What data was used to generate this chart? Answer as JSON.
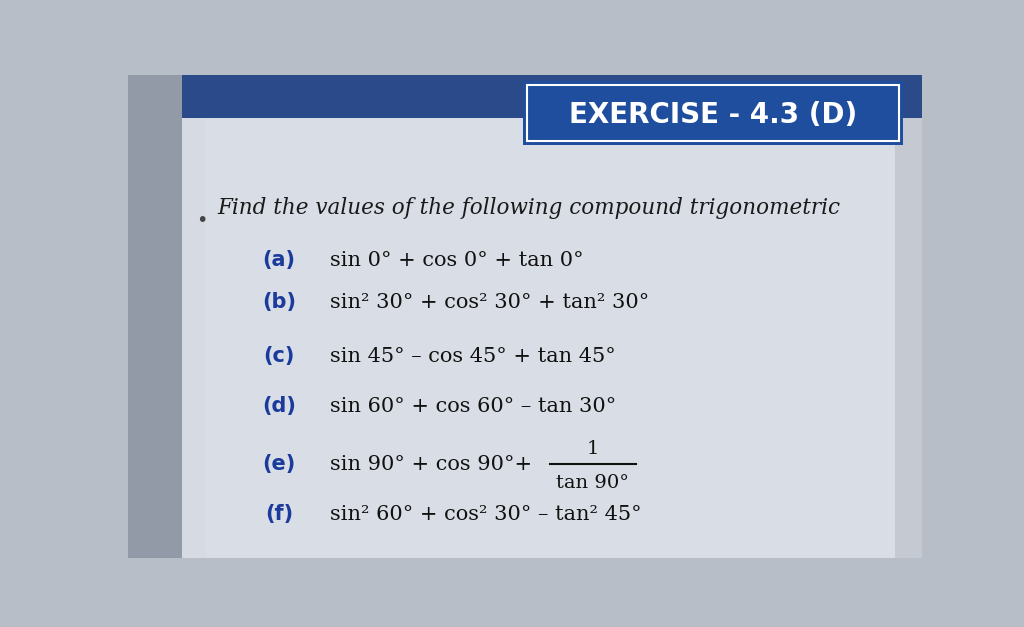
{
  "title": "EXERCISE - 4.3 (D)",
  "title_bg_color": "#1f4e9e",
  "title_border_color": "#ffffff",
  "title_text_color": "#ffffff",
  "page_bg_color": "#b8bec8",
  "content_bg_color": "#d8dce4",
  "arc_color": "#2a4a8a",
  "instruction": "Find the values of the following compound trigonometric",
  "instruction_color": "#1a1a1a",
  "parts": [
    {
      "label": "(a)",
      "expr": "sin 0° + cos 0° + tan 0°"
    },
    {
      "label": "(b)",
      "expr": "sin² 30° + cos² 30° + tan² 30°"
    },
    {
      "label": "(c)",
      "expr": "sin 45° – cos 45° + tan 45°"
    },
    {
      "label": "(d)",
      "expr": "sin 60° + cos 60° – tan 30°"
    },
    {
      "label": "(e)",
      "expr": "sin 90° + cos 90°+"
    },
    {
      "label": "(f)",
      "expr": "sin² 60° + cos² 30° – tan² 45°"
    }
  ],
  "label_color": "#1a3a9c",
  "text_color": "#111111",
  "fraction_numerator": "1",
  "fraction_denominator": "tan 90°",
  "dot_color": "#444444",
  "left_shadow_color": "#8a8f99",
  "right_shadow_color": "#c0c5cc"
}
